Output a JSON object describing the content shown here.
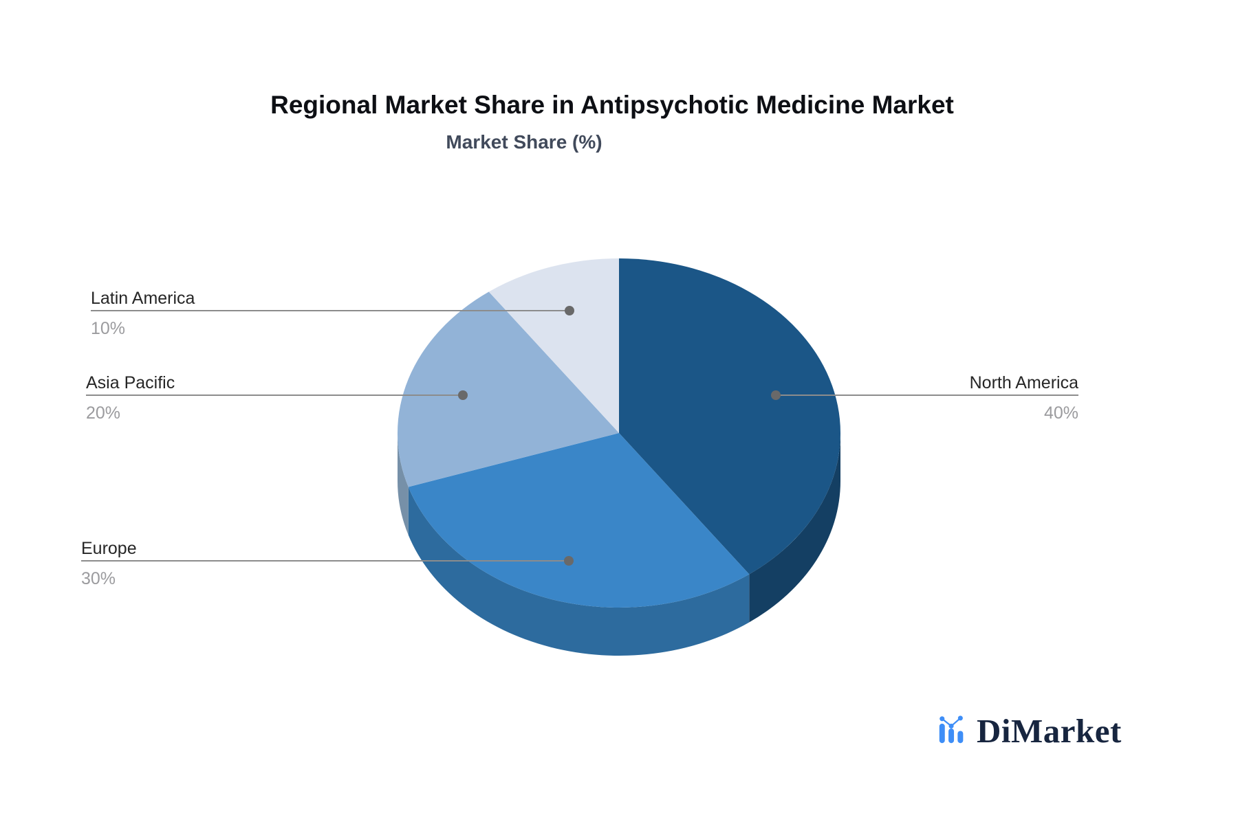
{
  "page": {
    "background": "#ffffff"
  },
  "header": {
    "title": "Regional Market Share in Antipsychotic Medicine Market",
    "subtitle": "Market Share (%)"
  },
  "chart_data": {
    "type": "pie",
    "style": "3d",
    "title": "Regional Market Share in Antipsychotic Medicine Market",
    "subtitle": "Market Share (%)",
    "unit": "%",
    "start_angle_deg": 0,
    "direction": "clockwise",
    "slices": [
      {
        "label": "North America",
        "value": 40,
        "value_label": "40%",
        "color": "#1b5687",
        "side_color": "#143f63",
        "callout_side": "right"
      },
      {
        "label": "Europe",
        "value": 30,
        "value_label": "30%",
        "color": "#3a86c8",
        "side_color": "#2d6b9e",
        "callout_side": "left"
      },
      {
        "label": "Asia Pacific",
        "value": 20,
        "value_label": "20%",
        "color": "#92b3d7",
        "side_color": "#7690a8",
        "callout_side": "left"
      },
      {
        "label": "Latin America",
        "value": 10,
        "value_label": "10%",
        "color": "#dce3ef",
        "side_color": "#b9c3d4",
        "callout_side": "left"
      }
    ],
    "legend_position": "callout-labels",
    "label_color": "#262626",
    "value_color": "#9b9b9e",
    "connector_color": "#8c8c8c",
    "connector_dot_color": "#696969"
  },
  "branding": {
    "logo_text": "DiMarket",
    "logo_icon": "bar-line-chart-icon",
    "icon_color": "#3e8ef7",
    "text_color": "#17253f"
  }
}
